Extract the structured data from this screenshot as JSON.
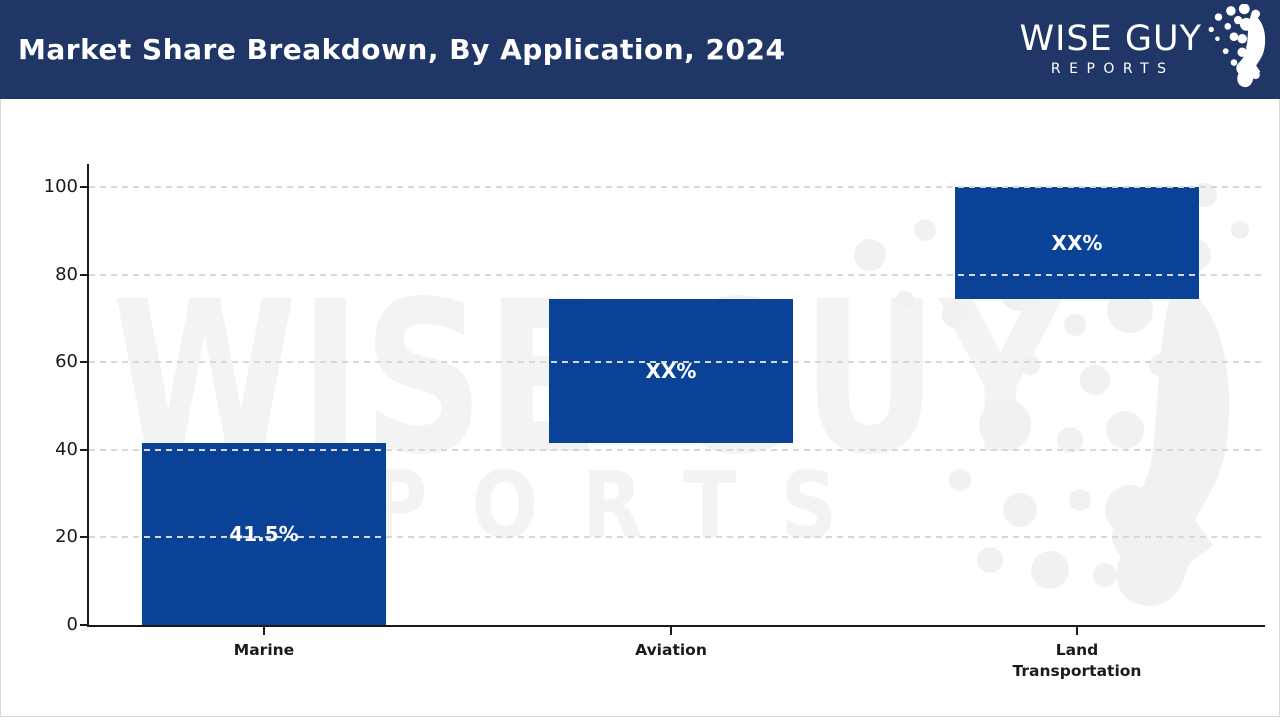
{
  "header": {
    "title": "Market Share Breakdown, By Application, 2024",
    "logo": {
      "line1": "WISE GUY",
      "line2": "REPORTS"
    }
  },
  "watermark": {
    "line1": "WISE GUY",
    "line2": "REPORTS"
  },
  "colors": {
    "header_bg": "#203666",
    "bar": "#094296",
    "grid": "#d8d8d8",
    "axis": "#1a1a1a",
    "bar_label": "#ffffff",
    "watermark": "#f3f3f3"
  },
  "chart_data": {
    "type": "bar",
    "subtype": "waterfall-floating-bars",
    "title": "Market Share Breakdown, By Application, 2024",
    "categories": [
      "Marine",
      "Aviation",
      "Land\nTransportation"
    ],
    "segments": [
      {
        "category": "Marine",
        "start": 0,
        "end": 41.5,
        "value": 41.5,
        "label": "41.5%"
      },
      {
        "category": "Aviation",
        "start": 41.5,
        "end": 74.5,
        "value": 33.0,
        "label": "XX%"
      },
      {
        "category": "Land Transportation",
        "start": 74.5,
        "end": 100,
        "value": 25.5,
        "label": "XX%"
      }
    ],
    "y_ticks": [
      0,
      20,
      40,
      60,
      80,
      100
    ],
    "ylim": [
      0,
      105
    ],
    "xlabel": "",
    "ylabel": "",
    "grid": "dashed-horizontal",
    "legend": "none"
  }
}
